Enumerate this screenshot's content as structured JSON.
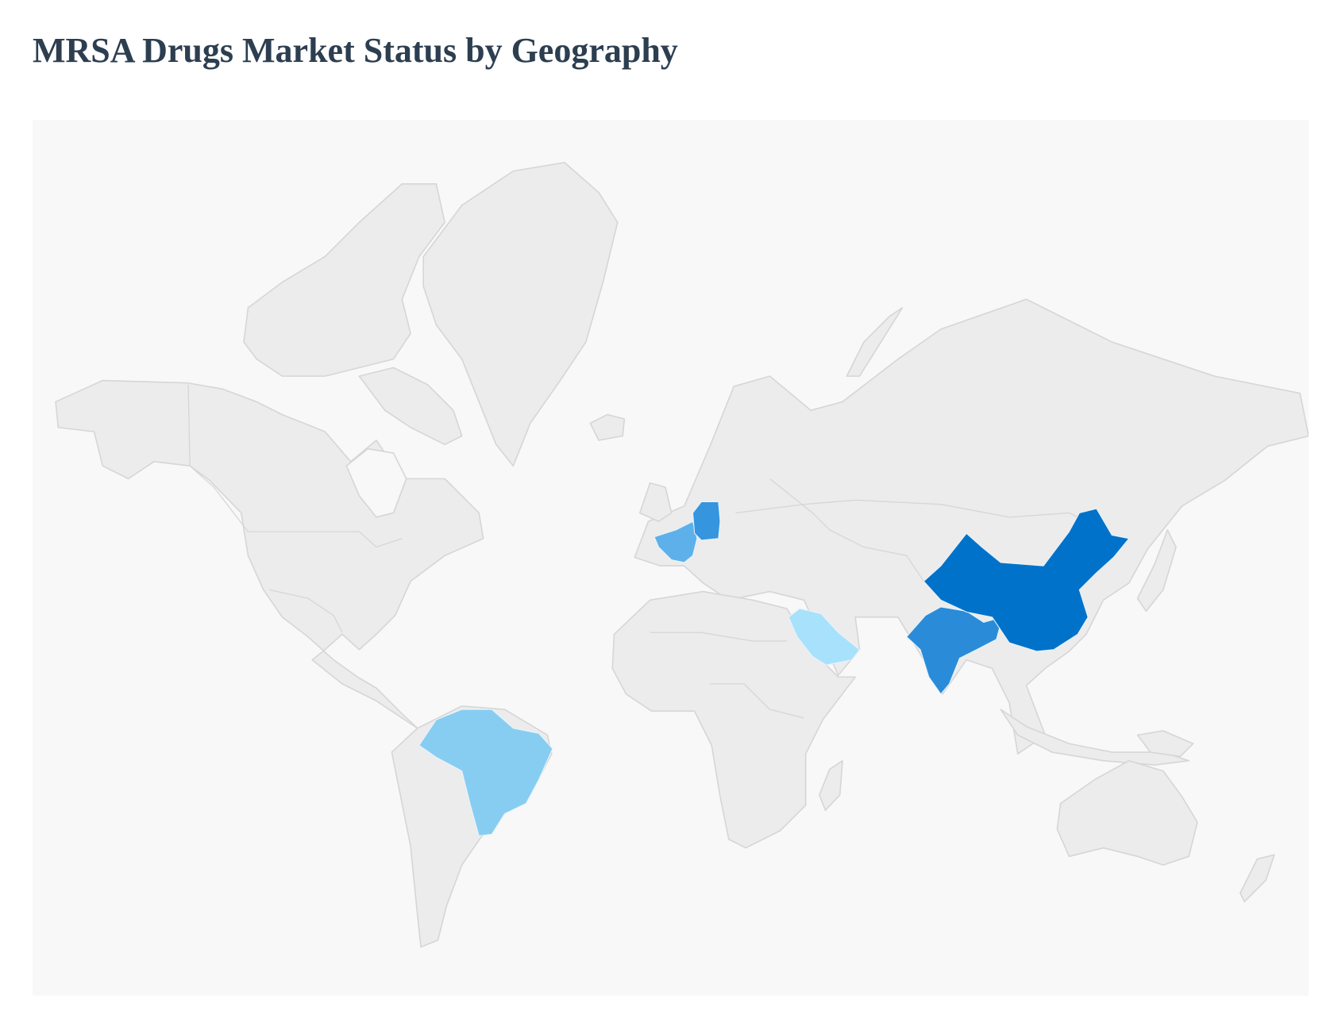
{
  "title": "MRSA Drugs Market Status by Geography",
  "map": {
    "background_color": "#f8f8f8",
    "land_color": "#ececec",
    "border_color": "#d6d6d6",
    "highlight_colors": {
      "china": "#0072c9",
      "india": "#2a8cd8",
      "germany": "#3595de",
      "france": "#5eb0ea",
      "brazil": "#86cdf1",
      "saudi_arabia": "#a8e1fb"
    }
  }
}
